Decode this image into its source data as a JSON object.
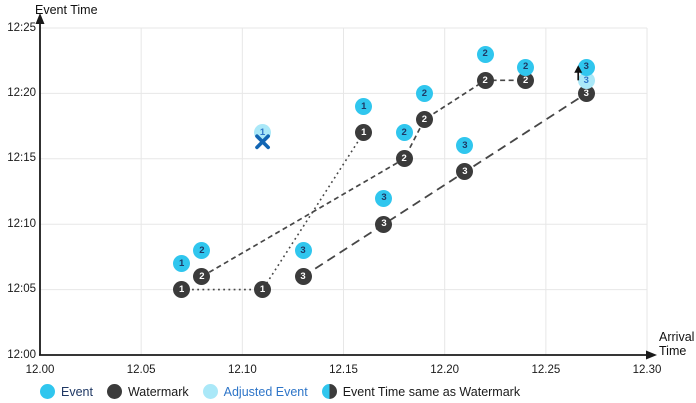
{
  "colors": {
    "event": "#30C6EE",
    "event_number": "#1F3864",
    "watermark": "#3B3B3B",
    "watermark_number": "#FFFFFF",
    "adjusted": "#AAE8F8",
    "adjusted_number": "#2E75C8",
    "x_marker": "#1266B4",
    "arrow": "#111111",
    "line": "#474747",
    "grid": "#E7E7E7",
    "axis": "#1A1A1A",
    "text": "#1A1A1A"
  },
  "chart_data": {
    "type": "scatter",
    "title": "",
    "x_axis": {
      "label": "Arrival Time",
      "range": [
        12.0,
        12.3
      ],
      "ticks": [
        {
          "value": 12.0,
          "label": "12.00"
        },
        {
          "value": 12.05,
          "label": "12.05"
        },
        {
          "value": 12.1,
          "label": "12.10"
        },
        {
          "value": 12.15,
          "label": "12.15"
        },
        {
          "value": 12.2,
          "label": "12.20"
        },
        {
          "value": 12.25,
          "label": "12.25"
        },
        {
          "value": 12.3,
          "label": "12.30"
        }
      ]
    },
    "y_axis": {
      "label": "Event Time",
      "unit": "minutes after 12:00",
      "range": [
        0,
        25
      ],
      "ticks": [
        {
          "value": 0,
          "label": "12:00"
        },
        {
          "value": 5,
          "label": "12:05"
        },
        {
          "value": 10,
          "label": "12:10"
        },
        {
          "value": 15,
          "label": "12:15"
        },
        {
          "value": 20,
          "label": "12:20"
        },
        {
          "value": 25,
          "label": "12:25"
        }
      ]
    },
    "grid": true,
    "series": [
      {
        "name": "Watermark",
        "marker": "dark-circle",
        "groups": [
          {
            "id": "1",
            "line_style": "dotted",
            "points": [
              [
                12.07,
                5
              ],
              [
                12.11,
                5
              ],
              [
                12.16,
                17
              ]
            ]
          },
          {
            "id": "2",
            "line_style": "dashed",
            "points": [
              [
                12.08,
                6
              ],
              [
                12.18,
                15
              ],
              [
                12.19,
                18
              ],
              [
                12.22,
                21
              ],
              [
                12.24,
                21
              ]
            ]
          },
          {
            "id": "3",
            "line_style": "long-dash",
            "points": [
              [
                12.13,
                6
              ],
              [
                12.17,
                10
              ],
              [
                12.21,
                14
              ],
              [
                12.27,
                20
              ]
            ]
          }
        ]
      },
      {
        "name": "Adjusted Event",
        "marker": "light-cyan-circle",
        "groups": [
          {
            "id": "1",
            "line_style": "none",
            "points": [
              [
                12.11,
                17
              ]
            ]
          },
          {
            "id": "3",
            "line_style": "none",
            "points": [
              [
                12.27,
                21
              ]
            ]
          }
        ]
      },
      {
        "name": "Event",
        "marker": "cyan-circle",
        "groups": [
          {
            "id": "1",
            "line_style": "none",
            "points": [
              [
                12.07,
                7
              ],
              [
                12.16,
                19
              ]
            ]
          },
          {
            "id": "2",
            "line_style": "none",
            "points": [
              [
                12.08,
                8
              ],
              [
                12.18,
                17
              ],
              [
                12.19,
                20
              ],
              [
                12.22,
                23
              ],
              [
                12.24,
                22
              ]
            ]
          },
          {
            "id": "3",
            "line_style": "none",
            "points": [
              [
                12.13,
                8
              ],
              [
                12.17,
                12
              ],
              [
                12.21,
                16
              ],
              [
                12.27,
                22
              ]
            ]
          }
        ]
      }
    ],
    "annotations": {
      "x_marker": {
        "x": 12.11,
        "y": 16.3
      },
      "up_arrow": {
        "x": 12.266,
        "y_from": 21.0,
        "y_to": 22.15
      }
    }
  },
  "legend": {
    "items": [
      {
        "label": "Event",
        "swatch": "event",
        "text_color": "#1F3864"
      },
      {
        "label": "Watermark",
        "swatch": "watermark",
        "text_color": "#1A1A1A"
      },
      {
        "label": "Adjusted Event",
        "swatch": "adjusted",
        "text_color": "#2E75C8"
      },
      {
        "label": "Event Time same as Watermark",
        "swatch": "half",
        "text_color": "#1A1A1A"
      }
    ]
  }
}
